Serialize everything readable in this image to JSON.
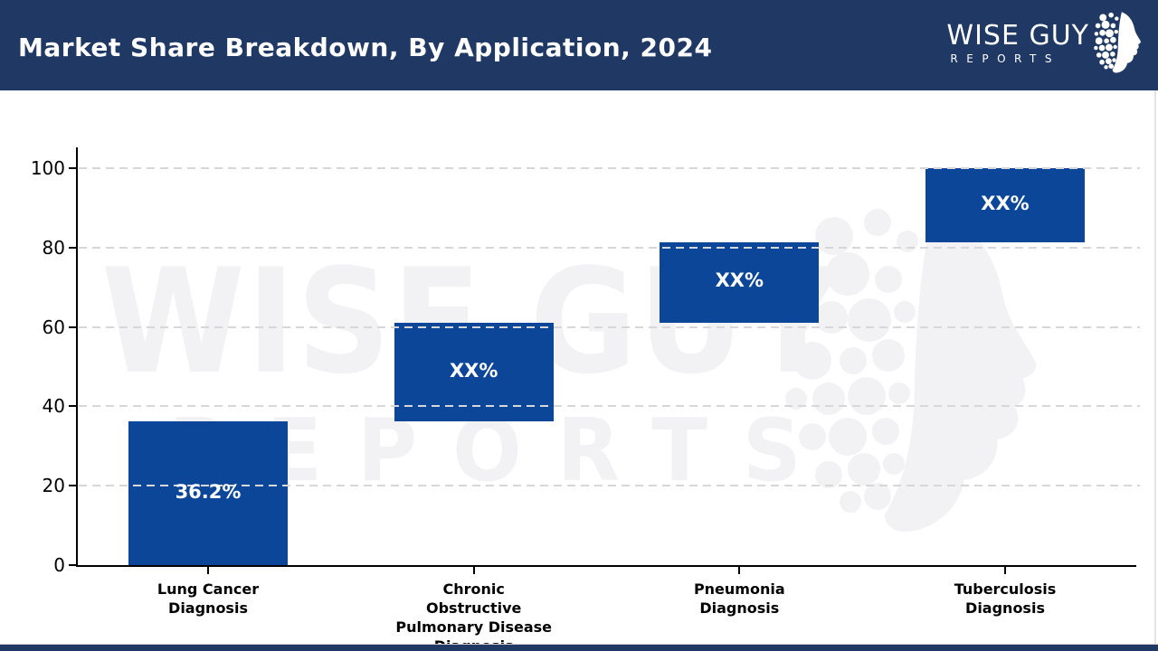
{
  "header": {
    "title": "Market Share Breakdown, By Application, 2024",
    "logo": {
      "name": "WISE GUY",
      "reports": "REPORTS"
    }
  },
  "watermark": {
    "name": "WISE GUY",
    "reports": "REPORTS"
  },
  "chart_data": {
    "type": "bar",
    "subtype": "waterfall-stacked-breakdown",
    "title": "Market Share Breakdown, By Application, 2024",
    "categories": [
      "Lung Cancer\nDiagnosis",
      "Chronic\nObstructive\nPulmonary Disease\nDiagnosis",
      "Pneumonia\nDiagnosis",
      "Tuberculosis\nDiagnosis"
    ],
    "segments": [
      {
        "start": 0,
        "end": 36.2,
        "label": "36.2%"
      },
      {
        "start": 36.2,
        "end": 61,
        "label": "XX%"
      },
      {
        "start": 61,
        "end": 81.4,
        "label": "XX%"
      },
      {
        "start": 81.4,
        "end": 100,
        "label": "XX%"
      }
    ],
    "xlabel": "",
    "ylabel": "",
    "ylim": [
      0,
      100
    ],
    "yticks": [
      0,
      20,
      40,
      60,
      80,
      100
    ],
    "grid": "horizontal-dashed",
    "legend": "none",
    "bar_color": "#0b4699",
    "value_label_color": "#ffffff"
  },
  "colors": {
    "header_navy": "#1f3864",
    "bar_blue": "#0b4699",
    "grid_gray": "#d7d7d7",
    "watermark_gray": "#f2f2f4",
    "axis_black": "#000000"
  }
}
